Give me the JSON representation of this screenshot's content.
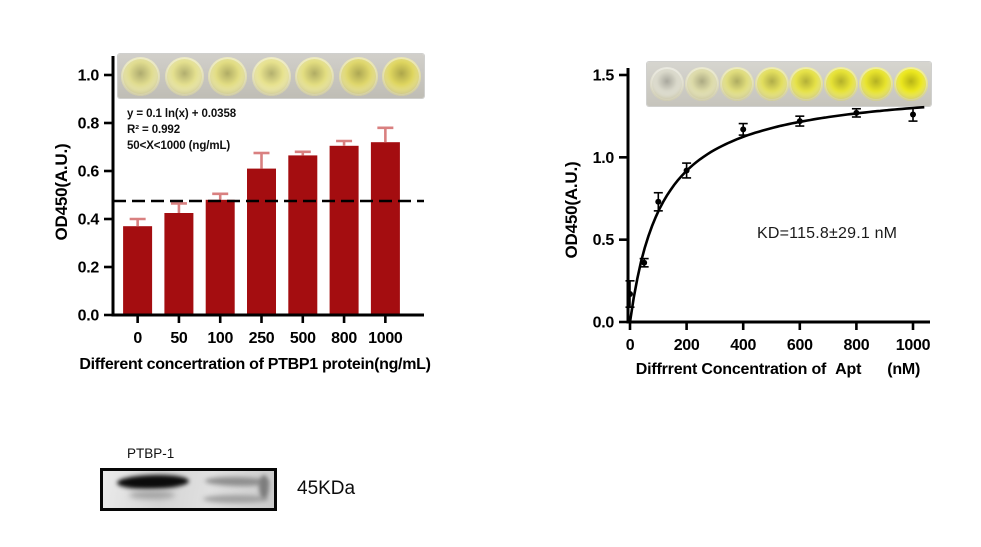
{
  "panels": {
    "binding_curve": {
      "xlabel_prefix": "Diffrrent Concentration of",
      "xlabel_target": "Apt",
      "xlabel_unit": "(nM)"
    },
    "western_blot": {
      "band_label": "PTBP-1",
      "marker_label": "45KDa"
    },
    "elisa_wells": {
      "strip_color": "#bfbdb5",
      "well_colors": [
        "#dfdb8e",
        "#e3df8e",
        "#e1dc82",
        "#e6e18d",
        "#e2dd80",
        "#ded66b",
        "#ded55f"
      ]
    },
    "apt_wells": {
      "strip_color": "#c6c4bc",
      "well_colors": [
        "#d9d8ca",
        "#dcdaa8",
        "#dfdc7c",
        "#e2de5e",
        "#e5e147",
        "#e6e236",
        "#e7e32c",
        "#ebe71e"
      ]
    }
  },
  "chart_data": [
    {
      "type": "bar",
      "title": "",
      "categories": [
        "0",
        "50",
        "100",
        "250",
        "500",
        "800",
        "1000"
      ],
      "values": [
        0.37,
        0.425,
        0.48,
        0.61,
        0.665,
        0.705,
        0.72
      ],
      "errors": [
        0.03,
        0.04,
        0.025,
        0.065,
        0.015,
        0.02,
        0.06
      ],
      "xlabel": "Different concertration of PTBP1 protein(ng/mL)",
      "ylabel": "OD450(A.U.)",
      "ylim": [
        0,
        1.0
      ],
      "yticks": [
        "0.0",
        "0.2",
        "0.4",
        "0.6",
        "0.8",
        "1.0"
      ],
      "reference_dashed_line_y": 0.475,
      "bar_color": "#A40D10",
      "error_bar_color": "#D98080",
      "annotation_lines": [
        "y = 0.1 ln(x) + 0.0358",
        "R² = 0.992",
        "50<X<1000 (ng/mL)"
      ]
    },
    {
      "type": "scatter",
      "x": [
        0,
        50,
        100,
        200,
        400,
        600,
        800,
        1000
      ],
      "y": [
        0.17,
        0.36,
        0.73,
        0.92,
        1.17,
        1.22,
        1.27,
        1.26
      ],
      "errors": [
        0.08,
        0.025,
        0.055,
        0.045,
        0.035,
        0.03,
        0.025,
        0.04
      ],
      "fit_curve": {
        "model": "one_site_binding",
        "bmax": 1.45,
        "kd": 115.8
      },
      "kd_annotation": "KD=115.8±29.1 nM",
      "xlabel": "Diffrrent Concentration of Apt (nM)",
      "ylabel": "OD450(A.U.)",
      "xlim": [
        0,
        1050
      ],
      "ylim": [
        0,
        1.5
      ],
      "xticks": [
        "0",
        "200",
        "400",
        "600",
        "800",
        "1000"
      ],
      "yticks": [
        "0.0",
        "0.5",
        "1.0",
        "1.5"
      ],
      "curve_color": "#000000",
      "point_color": "#000000"
    }
  ]
}
